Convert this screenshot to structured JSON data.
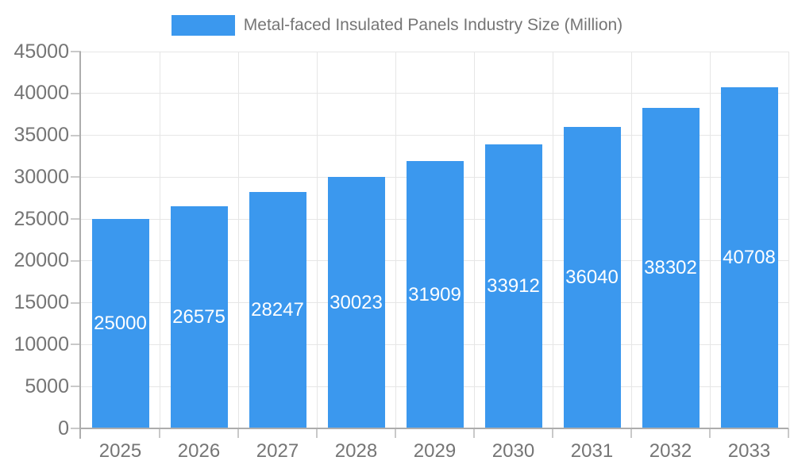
{
  "chart_data": {
    "type": "bar",
    "title": "Metal-faced Insulated Panels Industry Size (Million)",
    "categories": [
      "2025",
      "2026",
      "2027",
      "2028",
      "2029",
      "2030",
      "2031",
      "2032",
      "2033"
    ],
    "values": [
      25000,
      26575,
      28247,
      30023,
      31909,
      33912,
      36040,
      38302,
      40708
    ],
    "xlabel": "",
    "ylabel": "",
    "ylim": [
      0,
      45000
    ],
    "ytick_step": 5000,
    "ytick_labels": [
      "0",
      "5000",
      "10000",
      "15000",
      "20000",
      "25000",
      "30000",
      "35000",
      "40000",
      "45000"
    ],
    "grid": "on",
    "legend_position": "top",
    "colors": {
      "bar": "#3B98EE",
      "bar_value_text": "#FFFFFF",
      "axis_text": "#757575",
      "gridline": "#E6E6E6",
      "axis_line": "#ADADAD",
      "tick": "#C9C9C9",
      "background": "#FFFFFF"
    }
  }
}
